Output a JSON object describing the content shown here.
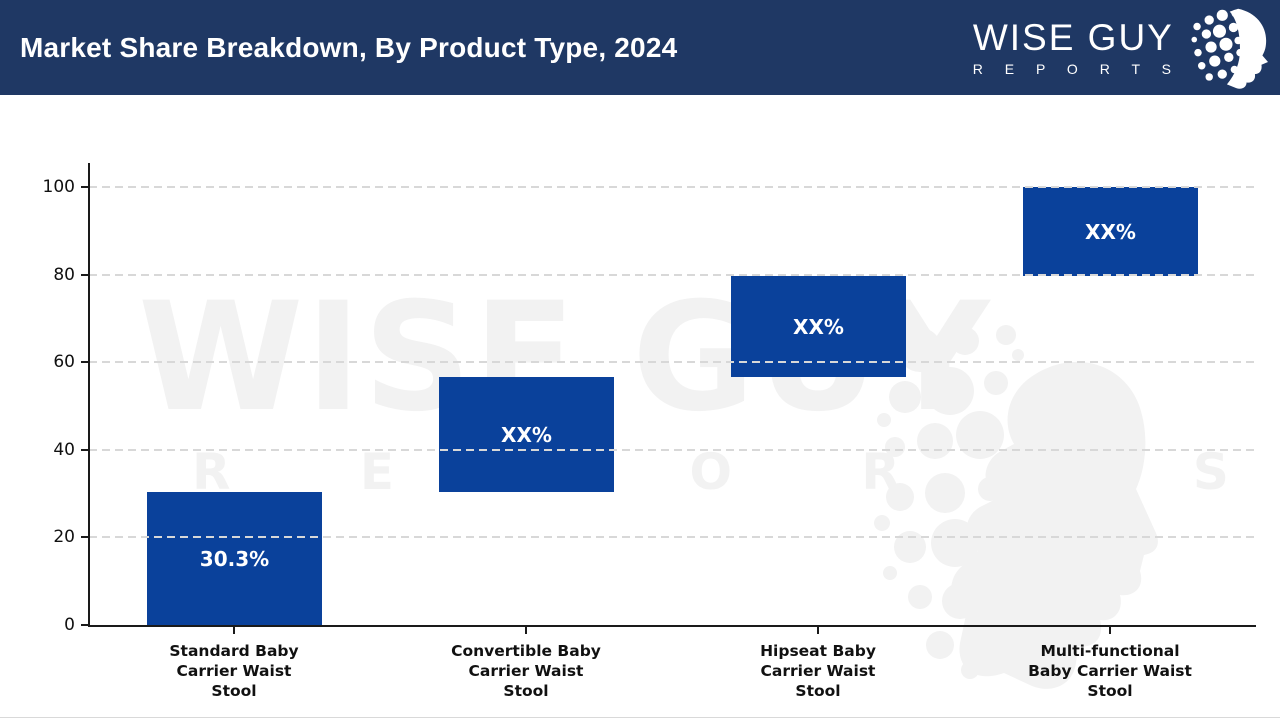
{
  "header": {
    "title": "Market Share Breakdown, By Product Type, 2024",
    "bg_color": "#1f3864",
    "logo": {
      "name": "WISE GUY",
      "tagline": "REPORTS"
    }
  },
  "watermark": {
    "line1": "WISE GUY",
    "line2": "REPORTS"
  },
  "chart_data": {
    "type": "bar",
    "subtype": "waterfall",
    "title": "Market Share Breakdown, By Product Type, 2024",
    "categories": [
      [
        "Standard Baby",
        "Carrier Waist",
        "Stool"
      ],
      [
        "Convertible Baby",
        "Carrier Waist",
        "Stool"
      ],
      [
        "Hipseat Baby",
        "Carrier Waist",
        "Stool"
      ],
      [
        "Multi-functional",
        "Baby Carrier Waist",
        "Stool"
      ]
    ],
    "segments": [
      {
        "start": 0,
        "end": 30.3,
        "label": "30.3%"
      },
      {
        "start": 30.3,
        "end": 56.6,
        "label": "XX%"
      },
      {
        "start": 56.6,
        "end": 79.7,
        "label": "XX%"
      },
      {
        "start": 79.7,
        "end": 100,
        "label": "XX%"
      }
    ],
    "ylim": [
      0,
      100
    ],
    "yticks": [
      0,
      20,
      40,
      60,
      80,
      100
    ],
    "grid": "horizontal-dashed",
    "legend": "none",
    "xlabel": "",
    "ylabel": "",
    "bar_color": "#0a419b",
    "bar_label_color": "#ffffff",
    "axis_color": "#1a1a1a",
    "gridline_color": "#d8d8d8"
  }
}
